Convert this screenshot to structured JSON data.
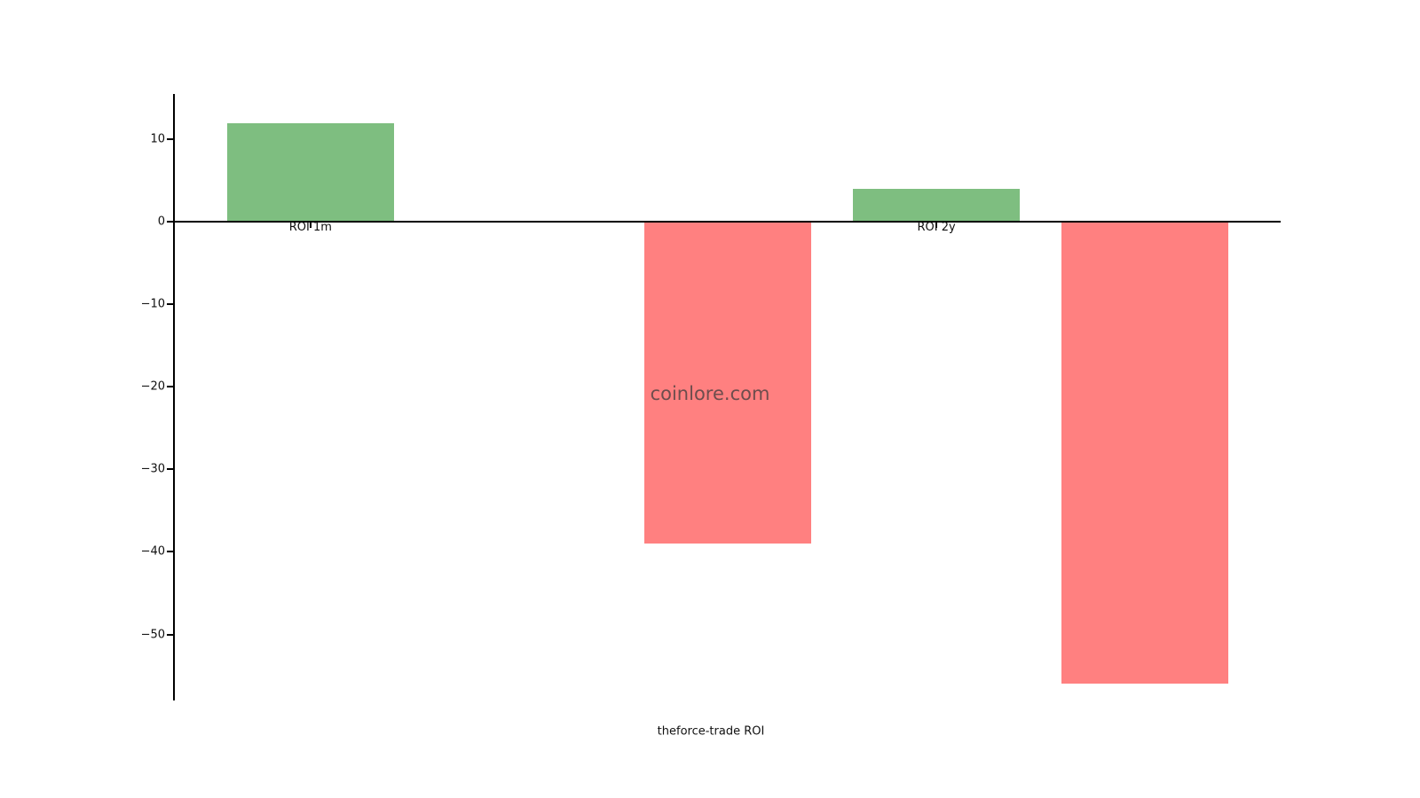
{
  "chart_data": {
    "type": "bar",
    "title": "theforce-trade ROI",
    "watermark": "coinlore.com",
    "bars": [
      {
        "position": 0,
        "value": 12
      },
      {
        "position": 2,
        "value": -39
      },
      {
        "position": 3,
        "value": 4
      },
      {
        "position": 4,
        "value": -56
      }
    ],
    "bar_width": 0.8,
    "x_ticks": [
      {
        "position": 0,
        "label": "ROI 1m"
      },
      {
        "position": 3,
        "label": "ROI 2y"
      }
    ],
    "y_ticks": [
      {
        "value": 10,
        "label": "10"
      },
      {
        "value": 0,
        "label": "0"
      },
      {
        "value": -10,
        "label": "−10"
      },
      {
        "value": -20,
        "label": "−20"
      },
      {
        "value": -30,
        "label": "−30"
      },
      {
        "value": -40,
        "label": "−40"
      },
      {
        "value": -50,
        "label": "−50"
      }
    ],
    "xlim": [
      -0.65,
      4.65
    ],
    "ylim": [
      -58,
      15.5
    ],
    "grid": false,
    "legend_position": "none",
    "colors": {
      "positive": "#7ebe80",
      "negative": "#ff8080",
      "axis": "#000000",
      "text": "#111111"
    }
  }
}
